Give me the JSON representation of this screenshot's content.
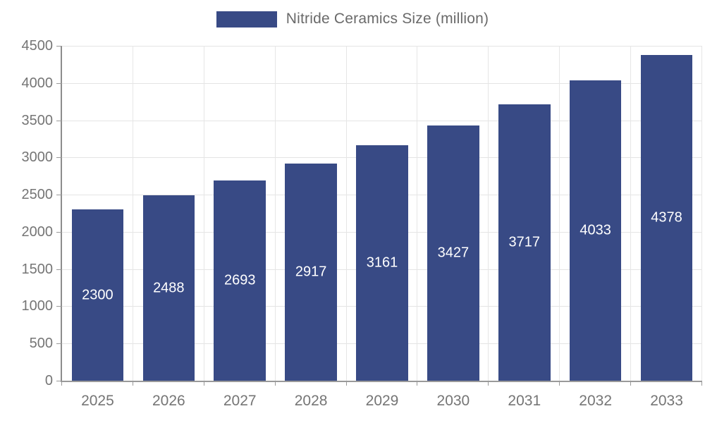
{
  "chart_data": {
    "type": "bar",
    "title": "Nitride Ceramics Size (million)",
    "legend": [
      "Nitride Ceramics Size (million)"
    ],
    "legend_position": "top-center",
    "categories": [
      "2025",
      "2026",
      "2027",
      "2028",
      "2029",
      "2030",
      "2031",
      "2032",
      "2033"
    ],
    "values": [
      2300,
      2488,
      2693,
      2917,
      3161,
      3427,
      3717,
      4033,
      4378
    ],
    "xlabel": "",
    "ylabel": "",
    "ylim": [
      0,
      4500
    ],
    "ytick_step": 500,
    "ytick_labels": [
      "0",
      "500",
      "1000",
      "1500",
      "2000",
      "2500",
      "3000",
      "3500",
      "4000",
      "4500"
    ],
    "grid": true,
    "value_labels": "inside-center-white"
  },
  "colors": {
    "bar": "#384A85",
    "bar_value_text": "#ffffff",
    "axis_line": "#8c8c8c",
    "tick_text": "#757575",
    "grid_line": "#e4e4e4",
    "legend_text": "#6a6a6a",
    "background": "#ffffff"
  }
}
